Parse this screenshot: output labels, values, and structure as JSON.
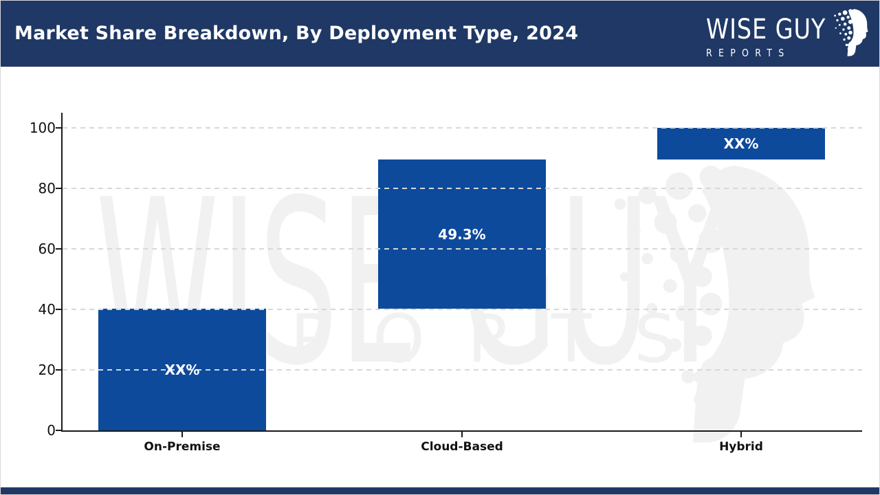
{
  "header": {
    "title": "Market Share Breakdown, By Deployment Type, 2024",
    "logo": {
      "primary": "WISE GUY",
      "secondary": "REPORTS"
    }
  },
  "watermark": {
    "primary": "WISE GUY",
    "secondary": "REPORTS"
  },
  "chart_data": {
    "type": "bar",
    "subtype": "waterfall",
    "title": "Market Share Breakdown, By Deployment Type, 2024",
    "categories": [
      "On-Premise",
      "Cloud-Based",
      "Hybrid"
    ],
    "segments": [
      {
        "category": "On-Premise",
        "start": 0,
        "end": 40.2,
        "label": "XX%"
      },
      {
        "category": "Cloud-Based",
        "start": 40.2,
        "end": 89.5,
        "label": "49.3%"
      },
      {
        "category": "Hybrid",
        "start": 89.5,
        "end": 100,
        "label": "XX%"
      }
    ],
    "xlabel": "",
    "ylabel": "",
    "ylim": [
      0,
      105
    ],
    "yticks": [
      0,
      20,
      40,
      60,
      80,
      100
    ],
    "grid": "horizontal-dashed",
    "legend": "none",
    "bar_color": "#0d4a9c",
    "value_label_color": "#ffffff"
  },
  "colors": {
    "header_bg": "#1f3865",
    "footer_bg": "#1f3865",
    "bar": "#0d4a9c",
    "grid": "#d8d8d8",
    "axis": "#1a1a1a",
    "text": "#111111",
    "watermark": "#f1f1f1",
    "page_border": "#d9d9d9"
  }
}
